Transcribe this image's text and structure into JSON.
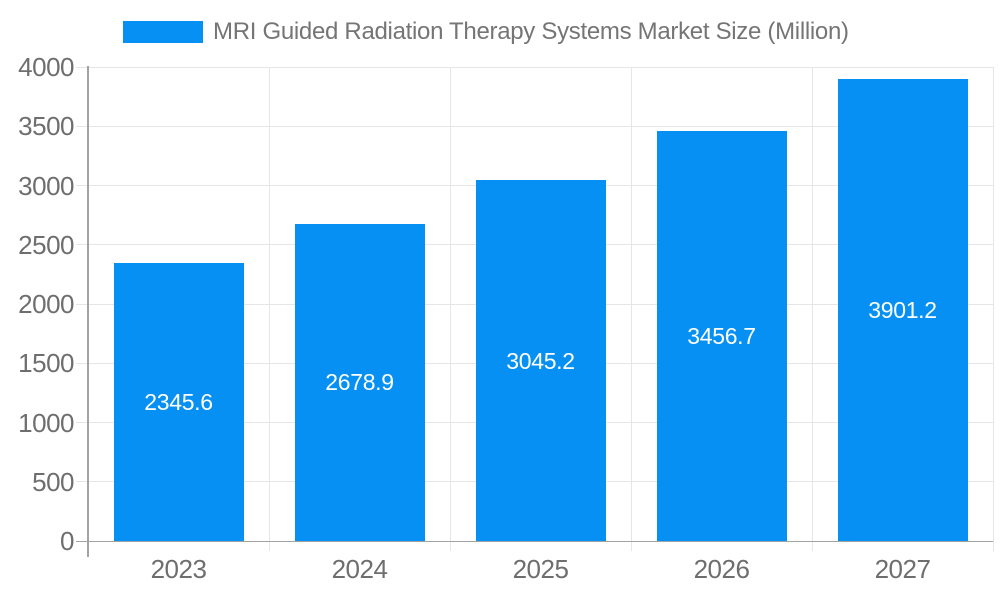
{
  "chart_data": {
    "type": "bar",
    "title": "MRI Guided Radiation Therapy Systems Market Size (Million)",
    "legend": {
      "position": "top",
      "entries": [
        "MRI Guided Radiation Therapy Systems Market Size (Million)"
      ]
    },
    "categories": [
      "2023",
      "2024",
      "2025",
      "2026",
      "2027"
    ],
    "series": [
      {
        "name": "MRI Guided Radiation Therapy Systems Market Size (Million)",
        "values": [
          2345.6,
          2678.9,
          3045.2,
          3456.7,
          3901.2
        ],
        "value_labels": [
          "2345.6",
          "2678.9",
          "3045.2",
          "3456.7",
          "3901.2"
        ]
      }
    ],
    "xlabel": "",
    "ylabel": "",
    "ylim": [
      0,
      4000
    ],
    "yticks": [
      0,
      500,
      1000,
      1500,
      2000,
      2500,
      3000,
      3500,
      4000
    ],
    "ytick_labels": [
      "0",
      "500",
      "1000",
      "1500",
      "2000",
      "2500",
      "3000",
      "3500",
      "4000"
    ],
    "grid": true,
    "colors": {
      "bar": "#0690f4",
      "grid": "#e6e6e6",
      "axis": "#a3a3a3",
      "tick_label": "#6e6e6e",
      "title": "#757575",
      "value_label": "#ffffff",
      "background": "#ffffff"
    }
  }
}
